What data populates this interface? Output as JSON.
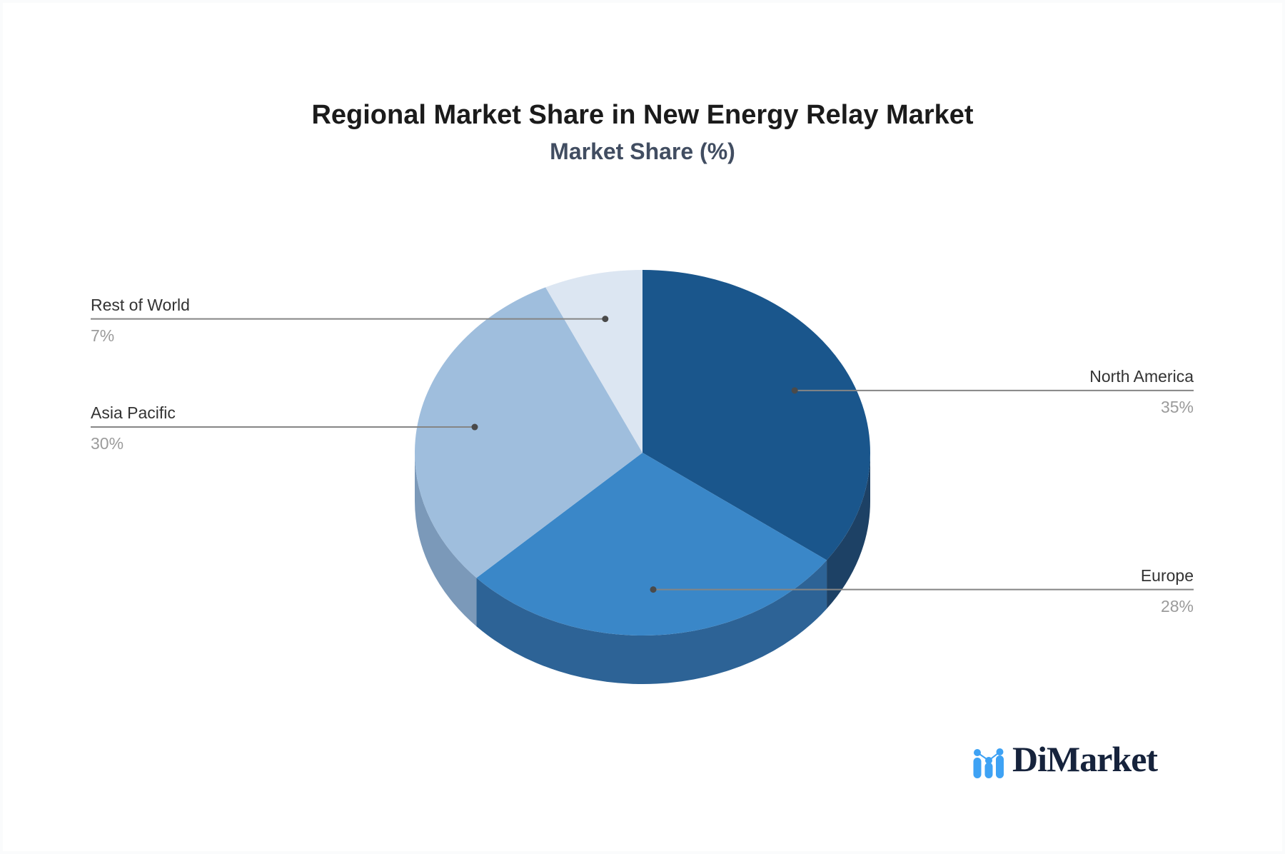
{
  "header": {
    "title": "Regional Market Share in New Energy Relay Market",
    "subtitle": "Market Share (%)"
  },
  "chart_data": {
    "type": "pie",
    "title": "Regional Market Share in New Energy Relay Market",
    "subtitle": "Market Share (%)",
    "unit": "%",
    "effect": "3d",
    "start_angle_deg": 90,
    "direction": "clockwise",
    "legend": "none",
    "slices": [
      {
        "label": "North America",
        "value": 35,
        "display": "35%",
        "color": "#1a568c",
        "side_color": "#1d4165",
        "label_side": "right"
      },
      {
        "label": "Europe",
        "value": 28,
        "display": "28%",
        "color": "#3a87c8",
        "side_color": "#2d6396",
        "label_side": "right"
      },
      {
        "label": "Asia Pacific",
        "value": 30,
        "display": "30%",
        "color": "#9fbedd",
        "side_color": "#7b99b9",
        "label_side": "left"
      },
      {
        "label": "Rest of World",
        "value": 7,
        "display": "7%",
        "color": "#dce6f2",
        "side_color": "#c2cfdf",
        "label_side": "left"
      }
    ],
    "label_name_color": "#333333",
    "label_value_color": "#9b9b9b",
    "leader_line_color": "#858585",
    "leader_dot_color": "#4a4a4a"
  },
  "branding": {
    "name": "DiMarket",
    "icon": "bar-chart-logo-icon",
    "icon_color": "#3ea2f4",
    "text_color": "#16233c"
  }
}
